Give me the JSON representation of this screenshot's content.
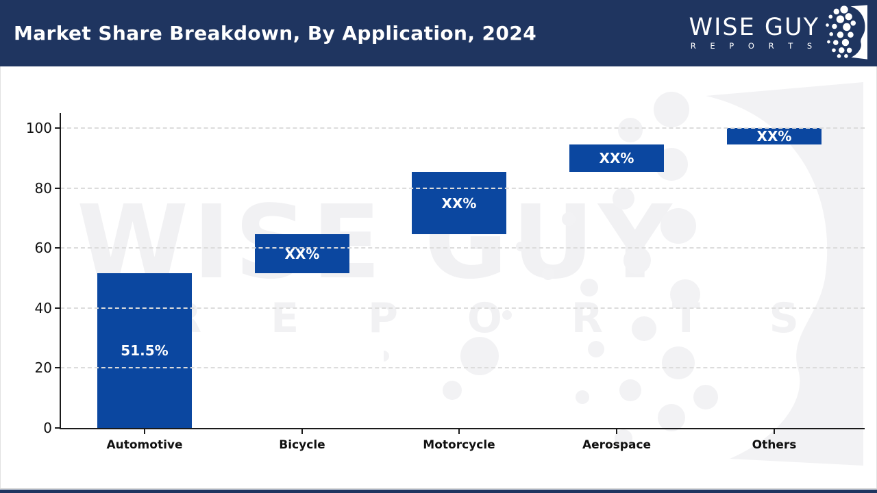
{
  "header": {
    "title": "Market Share Breakdown, By Application, 2024",
    "logo": {
      "line1": "WISE GUY",
      "line2": "R E P O R T S"
    },
    "bg_color": "#1f3560",
    "text_color": "#ffffff"
  },
  "watermark": {
    "line1": "WISE GUY",
    "line2": "R E P O R T S"
  },
  "chart_data": {
    "type": "bar",
    "subtype": "waterfall",
    "title": "Market Share Breakdown, By Application, 2024",
    "categories": [
      "Automotive",
      "Bicycle",
      "Motorcycle",
      "Aerospace",
      "Others"
    ],
    "segments": [
      {
        "category": "Automotive",
        "start": 0,
        "end": 51.5,
        "value": 51.5,
        "label": "51.5%"
      },
      {
        "category": "Bicycle",
        "start": 51.5,
        "end": 64.5,
        "value": 13,
        "label": "XX%"
      },
      {
        "category": "Motorcycle",
        "start": 64.5,
        "end": 85.5,
        "value": 21,
        "label": "XX%"
      },
      {
        "category": "Aerospace",
        "start": 85.5,
        "end": 94.5,
        "value": 9,
        "label": "XX%"
      },
      {
        "category": "Others",
        "start": 94.5,
        "end": 100,
        "value": 5.5,
        "label": "XX%"
      }
    ],
    "xlabel": "",
    "ylabel": "",
    "ylim": [
      0,
      100
    ],
    "yticks": [
      0,
      20,
      40,
      60,
      80,
      100
    ],
    "grid": "horizontal-dashed",
    "legend": "none",
    "bar_color": "#0b47a0",
    "gridline_color": "#dcdcdc",
    "axis_color": "#1a1a1a",
    "bar_label_color": "#ffffff"
  }
}
